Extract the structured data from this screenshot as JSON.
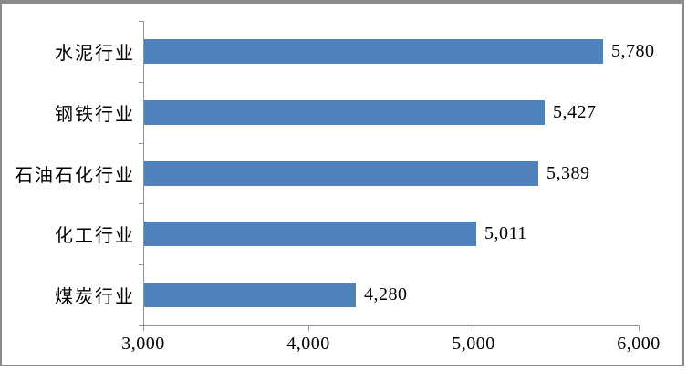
{
  "window": {
    "background": "#ffffff",
    "border_color": "#8a8a8a"
  },
  "chart_data": {
    "type": "bar",
    "orientation": "horizontal",
    "title": "",
    "xlabel": "",
    "ylabel": "",
    "categories": [
      "水泥行业",
      "钢铁行业",
      "石油石化行业",
      "化工行业",
      "煤炭行业"
    ],
    "values": [
      5780,
      5427,
      5389,
      5011,
      4280
    ],
    "value_labels": [
      "5,780",
      "5,427",
      "5,389",
      "5,011",
      "4,280"
    ],
    "xlim": [
      3000,
      6000
    ],
    "x_ticks": [
      3000,
      4000,
      5000,
      6000
    ],
    "x_tick_labels": [
      "3,000",
      "4,000",
      "5,000",
      "6,000"
    ],
    "grid": false,
    "legend": false,
    "bar_color": "#4F81BD",
    "axis_color": "#969696",
    "text_color": "#000000"
  }
}
